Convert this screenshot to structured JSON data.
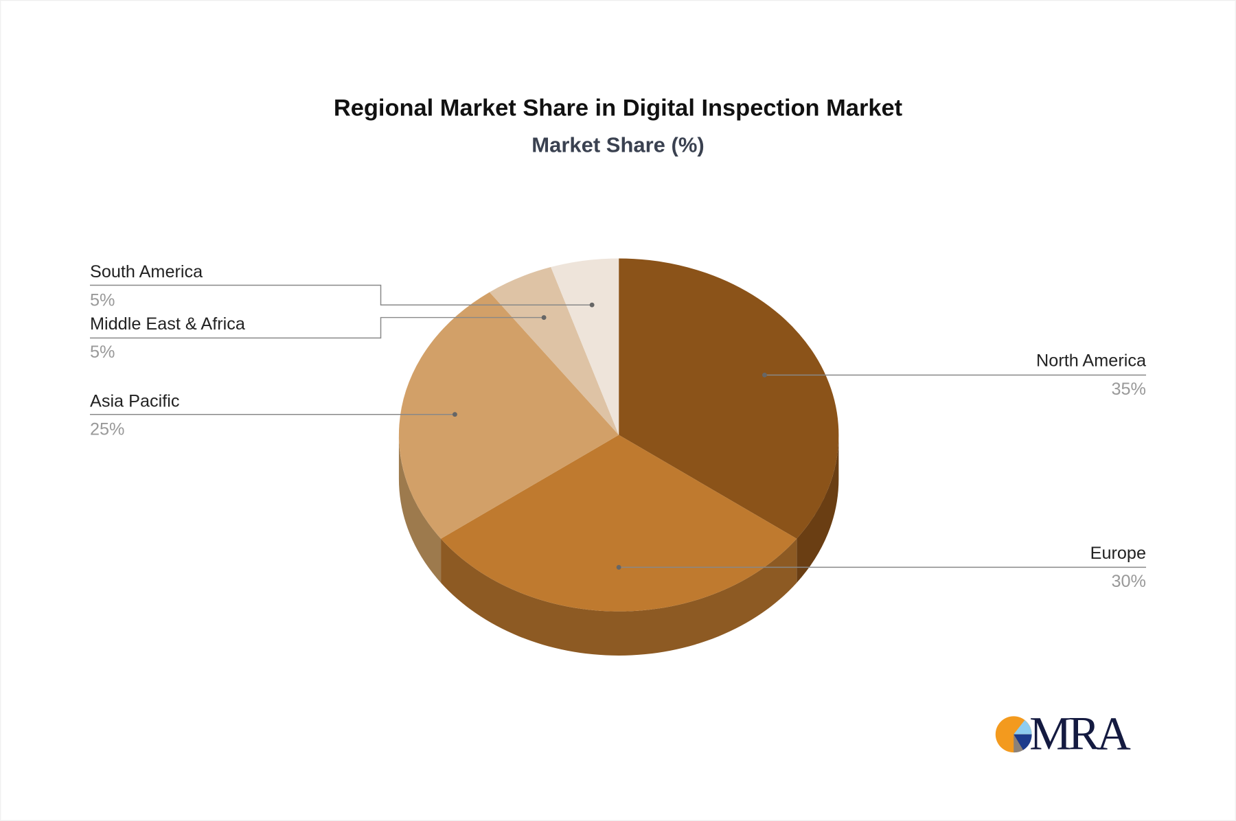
{
  "chart_data": {
    "type": "pie",
    "style": "3d",
    "title": "Regional Market Share in Digital Inspection Market",
    "subtitle": "Market Share (%)",
    "slices": [
      {
        "label": "North America",
        "value": 35,
        "value_label": "35%",
        "color": "#8B5319",
        "side_color": "#6A3E13"
      },
      {
        "label": "Europe",
        "value": 30,
        "value_label": "30%",
        "color": "#BF7A2F",
        "side_color": "#8D5A23"
      },
      {
        "label": "Asia Pacific",
        "value": 25,
        "value_label": "25%",
        "color": "#D2A068",
        "side_color": "#9D7A4D"
      },
      {
        "label": "Middle East & Africa",
        "value": 5,
        "value_label": "5%",
        "color": "#DEC3A5",
        "side_color": "#A8937C"
      },
      {
        "label": "South America",
        "value": 5,
        "value_label": "5%",
        "color": "#EEE4DA",
        "side_color": "#B5ACA3"
      }
    ]
  },
  "logo": {
    "text": "MRA",
    "colors": [
      "#F39A1E",
      "#8ECDF0",
      "#1D3C8C",
      "#8C8279"
    ]
  }
}
